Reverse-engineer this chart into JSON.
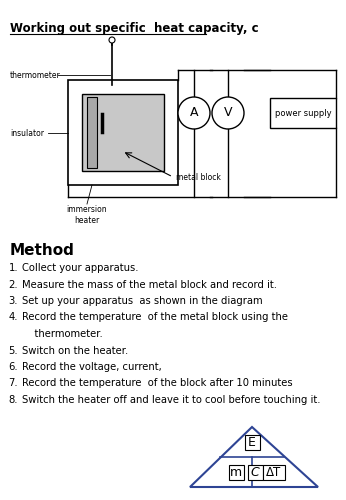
{
  "title": "Working out specific  heat capacity, c",
  "background_color": "#ffffff",
  "method_title": "Method",
  "method_items": [
    "Collect your apparatus.",
    "Measure the mass of the metal block and record it.",
    "Set up your apparatus  as shown in the diagram",
    "Record the temperature  of the metal block using the",
    "thermometer.",
    "Switch on the heater.",
    "Record the voltage, current,",
    "Record the temperature  of the block after 10 minutes",
    "Switch the heater off and leave it to cool before touching it."
  ],
  "method_numbers": [
    "1.",
    "2.",
    "3.",
    "4.",
    "",
    "5.",
    "6.",
    "7.",
    "8."
  ],
  "diagram_labels": {
    "thermometer": "thermometer",
    "insulator": "insulator",
    "metal_block": "metal block",
    "immersion_heater": "immersion\nheater",
    "ammeter": "A",
    "voltmeter": "V",
    "power_supply": "power supply"
  },
  "triangle_color": "#2e4494",
  "triangle_labels": [
    "E",
    "m",
    "C",
    "ΔT"
  ]
}
